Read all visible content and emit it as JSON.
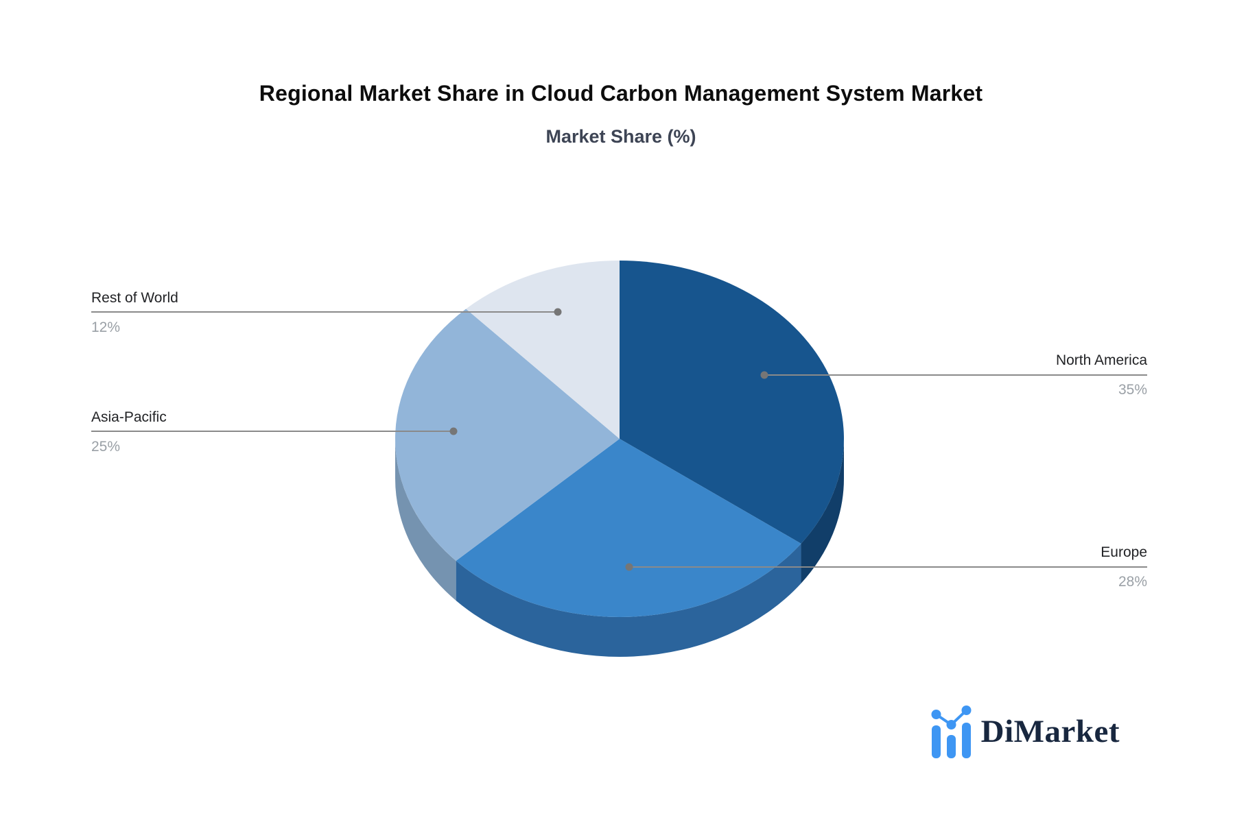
{
  "chart_data": {
    "type": "pie",
    "style": "3d",
    "title": "Regional Market Share in Cloud Carbon Management System Market",
    "subtitle": "Market Share (%)",
    "unit": "%",
    "start_angle_deg": 0,
    "direction": "clockwise",
    "legend_position": "connector-labels",
    "slices": [
      {
        "label": "North America",
        "value": 35,
        "value_label": "35%",
        "color": "#17558e",
        "side_color": "#113e69"
      },
      {
        "label": "Europe",
        "value": 28,
        "value_label": "28%",
        "color": "#3a86ca",
        "side_color": "#2b649c"
      },
      {
        "label": "Asia-Pacific",
        "value": 25,
        "value_label": "25%",
        "color": "#92b5d9",
        "side_color": "#7593b0"
      },
      {
        "label": "Rest of World",
        "value": 12,
        "value_label": "12%",
        "color": "#dee5ef",
        "side_color": "#b4c0d2"
      }
    ],
    "label_text_color": "#222326",
    "value_text_color": "#9aa0a6",
    "connector_color": "#8a8a8a"
  },
  "branding": {
    "logo_text": "DiMarket",
    "logo_color": "#18273f",
    "logo_icon": "bar-line-chart-icon",
    "logo_icon_color": "#3e96f3"
  }
}
